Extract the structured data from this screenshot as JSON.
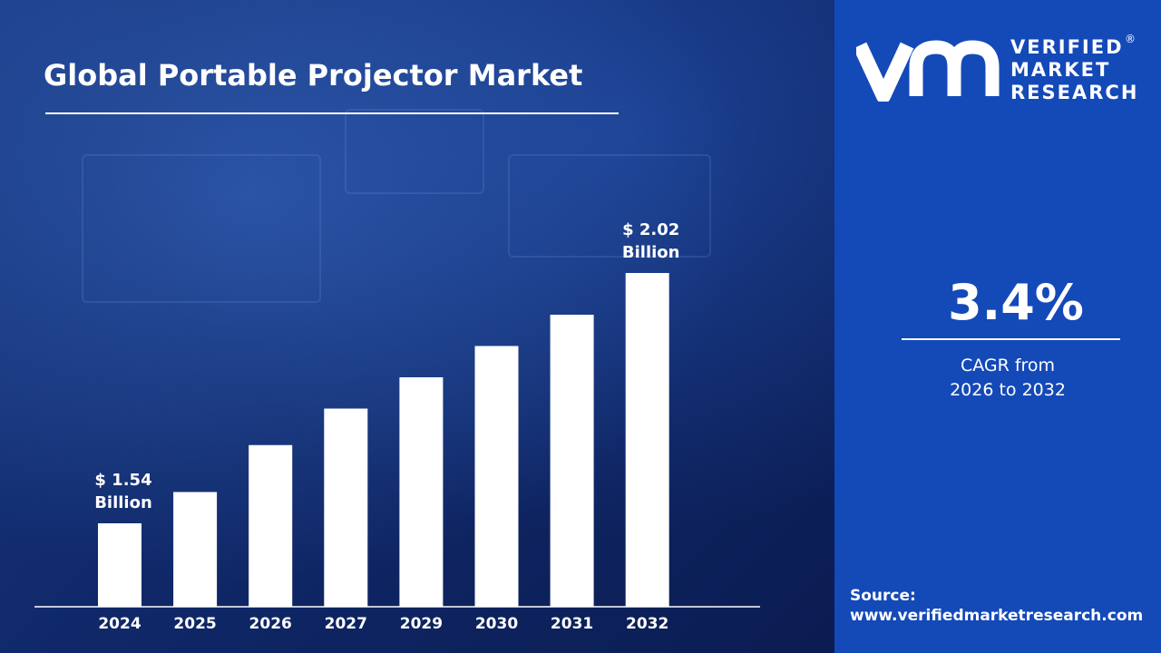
{
  "chart_data": {
    "type": "bar",
    "title": "Global Portable Projector Market",
    "categories": [
      "2024",
      "2025",
      "2026",
      "2027",
      "2029",
      "2030",
      "2031",
      "2032"
    ],
    "values": [
      1.54,
      1.6,
      1.69,
      1.76,
      1.82,
      1.88,
      1.94,
      2.02
    ],
    "unit": "USD Billion",
    "ylim": [
      1.38,
      2.1
    ],
    "grid": false,
    "data_labels": [
      {
        "category": "2024",
        "line1": "$ 1.54",
        "line2": "Billion"
      },
      {
        "category": "2032",
        "line1": "$ 2.02",
        "line2": "Billion"
      }
    ],
    "bar_color": "#ffffff"
  },
  "side_panel": {
    "logo": {
      "line1": "VERIFIED",
      "line2": "MARKET",
      "line3": "RESEARCH",
      "registered": "®"
    },
    "cagr_value": "3.4%",
    "cagr_label_line1": "CAGR from",
    "cagr_label_line2": "2026 to 2032",
    "source_label": "Source:",
    "source_url": "www.verifiedmarketresearch.com",
    "panel_color": "#1449b8"
  }
}
